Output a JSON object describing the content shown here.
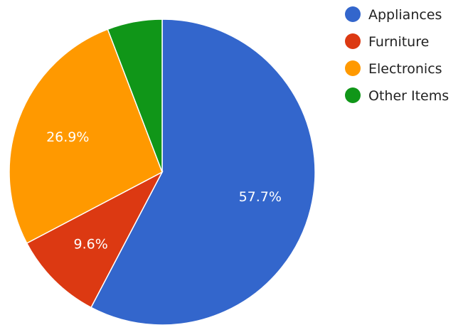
{
  "chart_data": {
    "type": "pie",
    "title": "",
    "legend_position": "top-right",
    "slices": [
      {
        "label": "Appliances",
        "value": 57.7,
        "value_label": "57.7%",
        "color": "#3366cc",
        "show_label": true
      },
      {
        "label": "Furniture",
        "value": 9.6,
        "value_label": "9.6%",
        "color": "#dc3912",
        "show_label": true
      },
      {
        "label": "Electronics",
        "value": 26.9,
        "value_label": "26.9%",
        "color": "#ff9900",
        "show_label": true
      },
      {
        "label": "Other Items",
        "value": 5.8,
        "value_label": "",
        "color": "#109618",
        "show_label": false
      }
    ]
  }
}
